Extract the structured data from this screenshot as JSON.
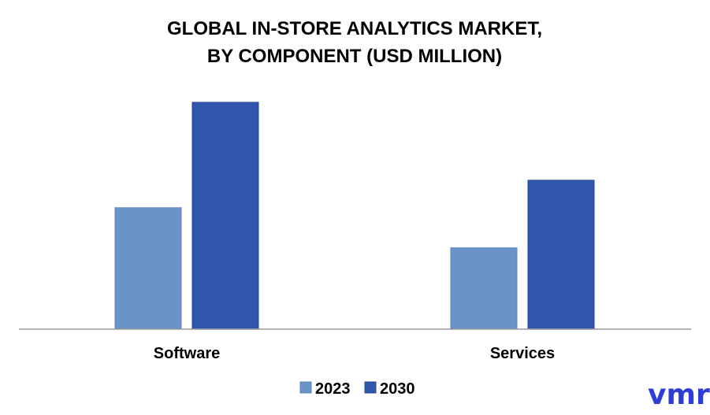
{
  "chart_data": {
    "type": "bar",
    "title_lines": [
      "GLOBAL IN-STORE ANALYTICS MARKET,",
      "BY COMPONENT (USD MILLION)"
    ],
    "categories": [
      "Software",
      "Services"
    ],
    "series": [
      {
        "name": "2023",
        "values": [
          53,
          35.5
        ],
        "color": "#6a93c8",
        "border": "#5b84bd"
      },
      {
        "name": "2030",
        "values": [
          99,
          65
        ],
        "color": "#3056ad",
        "border": "#27489a"
      }
    ],
    "ylim": [
      0,
      100
    ],
    "grid": false,
    "y_axis_visible": false,
    "legend_position": "bottom-center"
  },
  "logo": {
    "text": "vmr",
    "color": "#2e3dd6",
    "name": "vmr-logo"
  }
}
